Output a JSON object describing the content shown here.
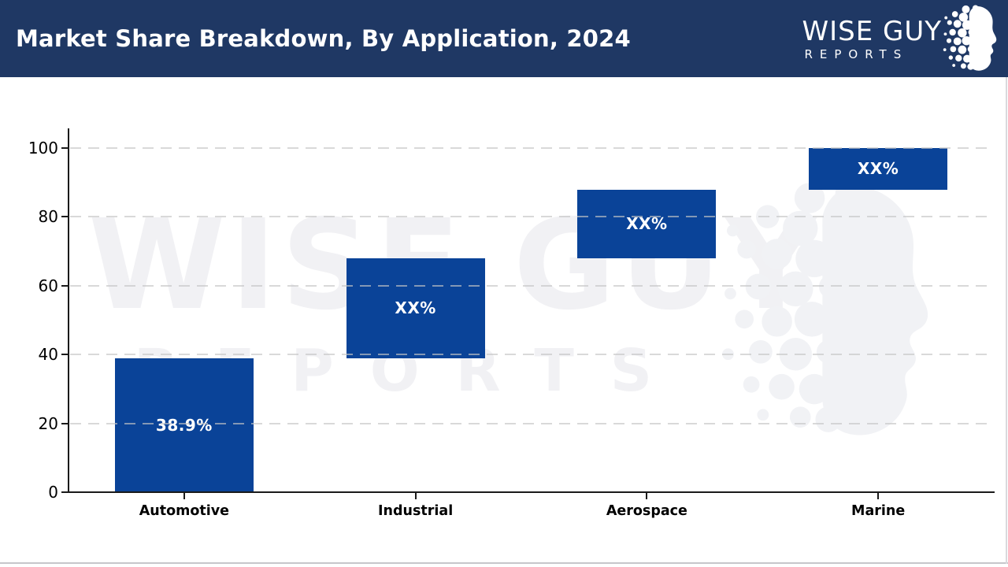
{
  "header": {
    "title": "Market Share Breakdown, By Application, 2024",
    "logo": {
      "line1": "WISE GUY",
      "line2": "REPORTS"
    }
  },
  "watermark": {
    "line1": "WISE GUY",
    "line2": "REPORTS"
  },
  "colors": {
    "header_bg": "#1f3864",
    "bar": "#0a4398",
    "bar_label": "#ffffff",
    "axis": "#1a1a1a",
    "gridline": "#d9d9d9",
    "watermark": "#f1f2f5"
  },
  "chart_data": {
    "type": "bar",
    "subtype": "waterfall",
    "title": "Market Share Breakdown, By Application, 2024",
    "categories": [
      "Automotive",
      "Industrial",
      "Aerospace",
      "Marine"
    ],
    "segments": [
      {
        "category": "Automotive",
        "start": 0,
        "end": 38.9,
        "label": "38.9%"
      },
      {
        "category": "Industrial",
        "start": 38.9,
        "end": 68.0,
        "label": "XX%"
      },
      {
        "category": "Aerospace",
        "start": 68.0,
        "end": 87.8,
        "label": "XX%"
      },
      {
        "category": "Marine",
        "start": 87.8,
        "end": 100.0,
        "label": "XX%"
      }
    ],
    "yticks": [
      0,
      20,
      40,
      60,
      80,
      100
    ],
    "ylim": [
      0,
      105.6
    ],
    "xlabel": "",
    "ylabel": "",
    "grid": true,
    "grid_style": "dashed",
    "legend": false
  }
}
